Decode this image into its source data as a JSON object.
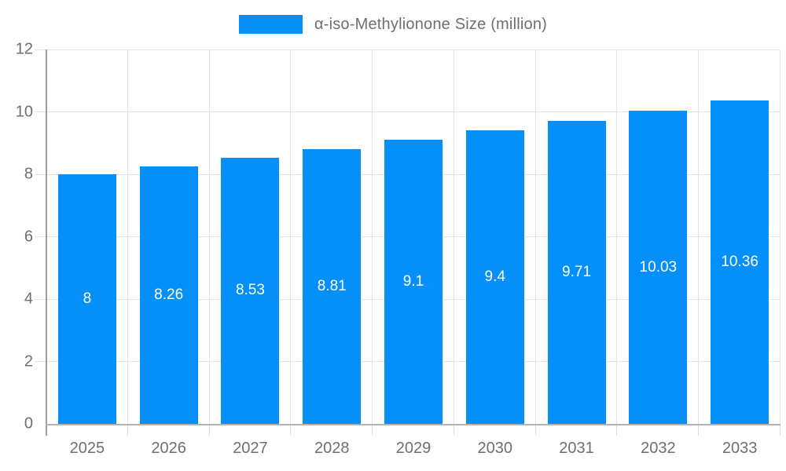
{
  "chart_data": {
    "type": "bar",
    "title": "α-iso-Methylionone Size (million)",
    "categories": [
      "2025",
      "2026",
      "2027",
      "2028",
      "2029",
      "2030",
      "2031",
      "2032",
      "2033"
    ],
    "values": [
      8,
      8.26,
      8.53,
      8.81,
      9.1,
      9.4,
      9.71,
      10.03,
      10.36
    ],
    "bar_labels": [
      "8",
      "8.26",
      "8.53",
      "8.81",
      "9.1",
      "9.4",
      "9.71",
      "10.03",
      "10.36"
    ],
    "xlabel": "",
    "ylabel": "",
    "ylim": [
      0,
      12
    ],
    "yticks": [
      0,
      2,
      4,
      6,
      8,
      10,
      12
    ],
    "ytick_labels": [
      "0",
      "2",
      "4",
      "6",
      "8",
      "10",
      "12"
    ],
    "grid": true,
    "legend_position": "top-center",
    "colors": {
      "bar": "#0590f9",
      "bar_label": "#ffffff",
      "axis_text": "#6f6f6f",
      "gridline": "#e4e4e4",
      "tick_line": "#dcdcdc",
      "axis_line": "#9e9e9e",
      "baseline": "#b3b3b3",
      "background": "#ffffff"
    }
  }
}
